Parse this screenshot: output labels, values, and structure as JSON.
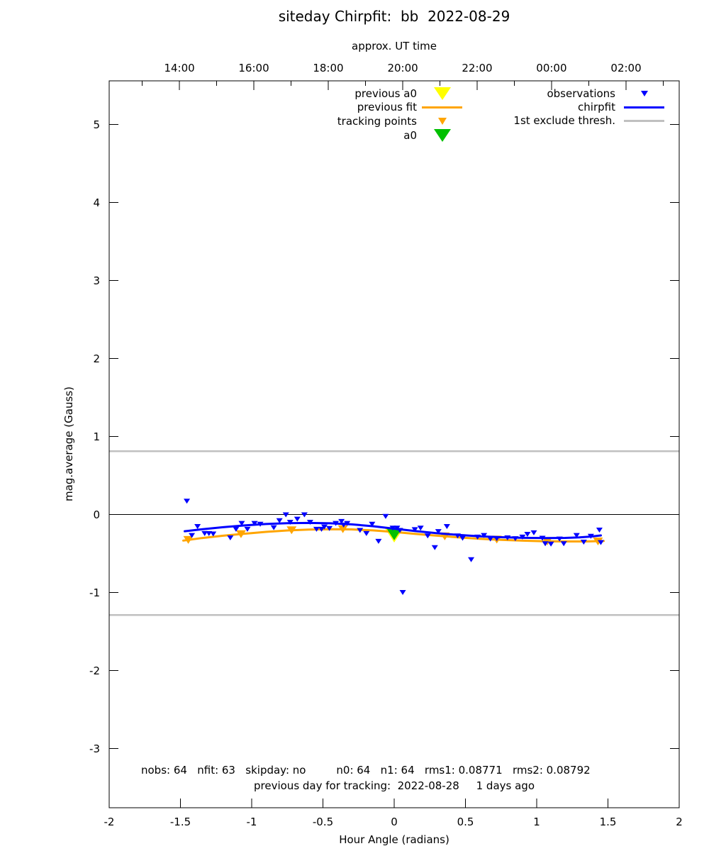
{
  "title": "siteday Chirpfit:  bb  2022-08-29",
  "top_axis": {
    "label": "approx. UT time"
  },
  "x_axis": {
    "label": "Hour Angle (radians)"
  },
  "y_axis": {
    "label": "mag.average (Gauss)"
  },
  "legend": {
    "left": [
      {
        "label": "previous a0",
        "marker": "triangle",
        "color": "#ffff00",
        "w": 25,
        "h": 18
      },
      {
        "label": "previous fit",
        "marker": "line",
        "color": "#ffa500"
      },
      {
        "label": "tracking points",
        "marker": "triangle",
        "color": "#ffa500",
        "w": 13,
        "h": 10
      },
      {
        "label": "a0",
        "marker": "triangle",
        "color": "#00c000",
        "w": 24,
        "h": 18
      }
    ],
    "right": [
      {
        "label": "observations",
        "marker": "triangle",
        "color": "#0000ff",
        "w": 10,
        "h": 8
      },
      {
        "label": "chirpfit",
        "marker": "line",
        "color": "#0000ff"
      },
      {
        "label": "1st exclude thresh.",
        "marker": "line",
        "color": "#c0c0c0"
      }
    ]
  },
  "stats": {
    "line1": "nobs: 64   nfit: 63   skipday: no         n0: 64   n1: 64   rms1: 0.08771   rms2: 0.08792",
    "line2": "previous day for tracking:  2022-08-28     1 days ago"
  },
  "colors": {
    "axis": "#000000",
    "threshold": "#c0c0c0",
    "chirpfit": "#0000ff",
    "previous_fit": "#ffa500",
    "previous_a0": "#ffff00",
    "a0": "#00c000",
    "observations": "#0000ff"
  },
  "chart_data": {
    "type": "scatter",
    "title": "siteday Chirpfit:  bb  2022-08-29",
    "xlabel": "Hour Angle (radians)",
    "x2label": "approx. UT time",
    "ylabel": "mag.average (Gauss)",
    "xlim": [
      -2,
      2
    ],
    "ylim": [
      -3.76,
      5.56
    ],
    "grid": false,
    "zero_line": 0,
    "exclude_thresholds": [
      0.81,
      -1.29
    ],
    "x_ticks": [
      {
        "x": -2,
        "label": "-2"
      },
      {
        "x": -1.5,
        "label": "-1.5"
      },
      {
        "x": -1,
        "label": "-1"
      },
      {
        "x": -0.5,
        "label": "-0.5"
      },
      {
        "x": 0,
        "label": "0"
      },
      {
        "x": 0.5,
        "label": "0.5"
      },
      {
        "x": 1,
        "label": "1"
      },
      {
        "x": 1.5,
        "label": "1.5"
      },
      {
        "x": 2,
        "label": "2"
      }
    ],
    "y_ticks": [
      {
        "y": 5,
        "label": "5"
      },
      {
        "y": 4,
        "label": "4"
      },
      {
        "y": 3,
        "label": "3"
      },
      {
        "y": 2,
        "label": "2"
      },
      {
        "y": 1,
        "label": "1"
      },
      {
        "y": 0,
        "label": "0"
      },
      {
        "y": -1,
        "label": "-1"
      },
      {
        "y": -2,
        "label": "-2"
      },
      {
        "y": -3,
        "label": "-3"
      }
    ],
    "x2_major_ticks": [
      {
        "x": -1.507,
        "label": "14:00"
      },
      {
        "x": -0.985,
        "label": "16:00"
      },
      {
        "x": -0.463,
        "label": "18:00"
      },
      {
        "x": 0.06,
        "label": "20:00"
      },
      {
        "x": 0.582,
        "label": "22:00"
      },
      {
        "x": 1.104,
        "label": "00:00"
      },
      {
        "x": 1.627,
        "label": "02:00"
      }
    ],
    "x2_minor_ticks": [
      -1.769,
      -1.246,
      -0.724,
      -0.201,
      0.321,
      0.843,
      1.366,
      1.888
    ],
    "series": [
      {
        "name": "previous a0",
        "type": "points",
        "marker": "triangle-down",
        "color": "#ffff00",
        "msize": [
          26,
          20
        ],
        "points": [
          [
            0.0,
            -0.268
          ]
        ]
      },
      {
        "name": "previous fit",
        "type": "line",
        "color": "#ffa500",
        "width": 3,
        "points": [
          [
            -1.48,
            -0.335
          ],
          [
            -1.35,
            -0.302
          ],
          [
            -1.2,
            -0.272
          ],
          [
            -1.05,
            -0.247
          ],
          [
            -0.9,
            -0.223
          ],
          [
            -0.75,
            -0.205
          ],
          [
            -0.6,
            -0.193
          ],
          [
            -0.45,
            -0.188
          ],
          [
            -0.3,
            -0.191
          ],
          [
            -0.15,
            -0.204
          ],
          [
            0,
            -0.224
          ],
          [
            0.15,
            -0.249
          ],
          [
            0.3,
            -0.272
          ],
          [
            0.45,
            -0.293
          ],
          [
            0.6,
            -0.311
          ],
          [
            0.75,
            -0.325
          ],
          [
            0.9,
            -0.336
          ],
          [
            1.05,
            -0.343
          ],
          [
            1.2,
            -0.346
          ],
          [
            1.35,
            -0.346
          ],
          [
            1.47,
            -0.34
          ]
        ]
      },
      {
        "name": "tracking points",
        "type": "points",
        "marker": "triangle-down",
        "color": "#ffa500",
        "msize": [
          14,
          11
        ],
        "points": [
          [
            -1.445,
            -0.326
          ],
          [
            -1.075,
            -0.252
          ],
          [
            -0.72,
            -0.203
          ],
          [
            -0.36,
            -0.189
          ],
          [
            0,
            -0.224
          ],
          [
            0.355,
            -0.281
          ],
          [
            0.72,
            -0.322
          ],
          [
            1.075,
            -0.344
          ],
          [
            1.43,
            -0.346
          ]
        ]
      },
      {
        "name": "a0",
        "type": "points",
        "marker": "triangle-down",
        "color": "#00c000",
        "msize": [
          22,
          17
        ],
        "points": [
          [
            0.0,
            -0.252
          ]
        ]
      },
      {
        "name": "chirpfit",
        "type": "line",
        "color": "#0000ff",
        "width": 3,
        "points": [
          [
            -1.47,
            -0.215
          ],
          [
            -1.35,
            -0.19
          ],
          [
            -1.2,
            -0.163
          ],
          [
            -1.05,
            -0.14
          ],
          [
            -0.9,
            -0.122
          ],
          [
            -0.75,
            -0.111
          ],
          [
            -0.6,
            -0.108
          ],
          [
            -0.45,
            -0.113
          ],
          [
            -0.3,
            -0.127
          ],
          [
            -0.15,
            -0.15
          ],
          [
            0,
            -0.182
          ],
          [
            0.15,
            -0.213
          ],
          [
            0.3,
            -0.24
          ],
          [
            0.45,
            -0.262
          ],
          [
            0.6,
            -0.279
          ],
          [
            0.75,
            -0.291
          ],
          [
            0.9,
            -0.299
          ],
          [
            1.05,
            -0.302
          ],
          [
            1.2,
            -0.3
          ],
          [
            1.3,
            -0.293
          ],
          [
            1.38,
            -0.283
          ],
          [
            1.45,
            -0.268
          ]
        ]
      },
      {
        "name": "observations",
        "type": "points",
        "marker": "triangle-down",
        "color": "#0000ff",
        "msize": [
          9,
          7
        ],
        "points": [
          [
            -1.455,
            0.17
          ],
          [
            -1.42,
            -0.27
          ],
          [
            -1.38,
            -0.155
          ],
          [
            -1.33,
            -0.245
          ],
          [
            -1.3,
            -0.245
          ],
          [
            -1.27,
            -0.25
          ],
          [
            -1.15,
            -0.3
          ],
          [
            -1.11,
            -0.19
          ],
          [
            -1.07,
            -0.115
          ],
          [
            -1.03,
            -0.19
          ],
          [
            -0.98,
            -0.115
          ],
          [
            -0.94,
            -0.125
          ],
          [
            -0.845,
            -0.17
          ],
          [
            -0.805,
            -0.08
          ],
          [
            -0.76,
            -0.005
          ],
          [
            -0.73,
            -0.1
          ],
          [
            -0.68,
            -0.06
          ],
          [
            -0.63,
            -0.005
          ],
          [
            -0.59,
            -0.1
          ],
          [
            -0.545,
            -0.19
          ],
          [
            -0.51,
            -0.19
          ],
          [
            -0.49,
            -0.16
          ],
          [
            -0.455,
            -0.18
          ],
          [
            -0.41,
            -0.115
          ],
          [
            -0.37,
            -0.09
          ],
          [
            -0.355,
            -0.135
          ],
          [
            -0.33,
            -0.115
          ],
          [
            -0.24,
            -0.205
          ],
          [
            -0.195,
            -0.245
          ],
          [
            -0.155,
            -0.125
          ],
          [
            -0.11,
            -0.345
          ],
          [
            -0.06,
            -0.025
          ],
          [
            -0.01,
            -0.175
          ],
          [
            0.02,
            -0.175
          ],
          [
            0.04,
            -0.205
          ],
          [
            0.06,
            -1.0
          ],
          [
            0.145,
            -0.195
          ],
          [
            0.185,
            -0.175
          ],
          [
            0.235,
            -0.275
          ],
          [
            0.285,
            -0.425
          ],
          [
            0.31,
            -0.22
          ],
          [
            0.37,
            -0.155
          ],
          [
            0.445,
            -0.275
          ],
          [
            0.48,
            -0.305
          ],
          [
            0.54,
            -0.58
          ],
          [
            0.585,
            -0.29
          ],
          [
            0.63,
            -0.27
          ],
          [
            0.675,
            -0.315
          ],
          [
            0.72,
            -0.31
          ],
          [
            0.795,
            -0.3
          ],
          [
            0.85,
            -0.31
          ],
          [
            0.9,
            -0.29
          ],
          [
            0.935,
            -0.255
          ],
          [
            0.98,
            -0.235
          ],
          [
            1.04,
            -0.305
          ],
          [
            1.06,
            -0.375
          ],
          [
            1.1,
            -0.38
          ],
          [
            1.16,
            -0.315
          ],
          [
            1.19,
            -0.375
          ],
          [
            1.28,
            -0.27
          ],
          [
            1.33,
            -0.355
          ],
          [
            1.38,
            -0.28
          ],
          [
            1.44,
            -0.2
          ],
          [
            1.45,
            -0.36
          ]
        ]
      }
    ]
  }
}
